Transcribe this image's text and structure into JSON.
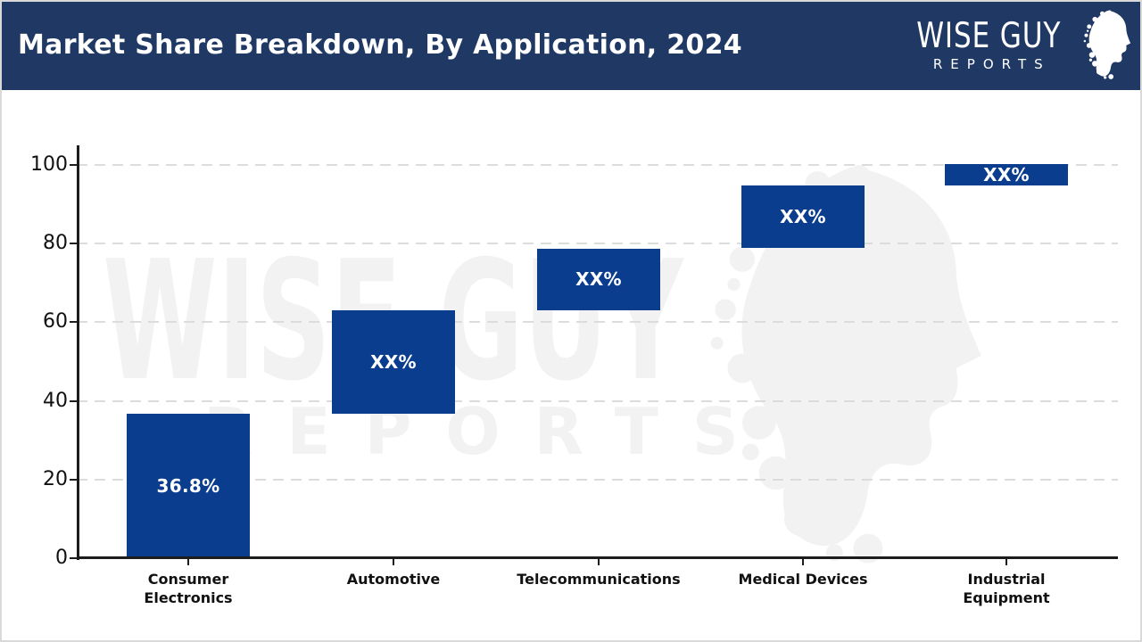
{
  "header": {
    "title": "Market Share Breakdown, By Application, 2024",
    "bg_color": "#1f3864",
    "logo": {
      "wordmark": "WISE GUY",
      "subtitle": "REPORTS",
      "face_icon": "face-profile-dots"
    }
  },
  "watermark": {
    "line1": "WISE GUY",
    "line2": "REPORTS"
  },
  "chart_data": {
    "type": "bar",
    "subtype": "waterfall-floating-bars",
    "title": "Market Share Breakdown, By Application, 2024",
    "xlabel": "",
    "ylabel": "",
    "categories": [
      "Consumer Electronics",
      "Automotive",
      "Telecommunications",
      "Medical Devices",
      "Industrial Equipment"
    ],
    "series": [
      {
        "name": "Market Share",
        "segments": [
          {
            "category": "Consumer Electronics",
            "start": 0,
            "end": 36.8,
            "label": "36.8%"
          },
          {
            "category": "Automotive",
            "start": 36.8,
            "end": 63.1,
            "label": "XX%"
          },
          {
            "category": "Telecommunications",
            "start": 63.1,
            "end": 78.8,
            "label": "XX%"
          },
          {
            "category": "Medical Devices",
            "start": 79.0,
            "end": 94.7,
            "label": "XX%"
          },
          {
            "category": "Industrial Equipment",
            "start": 94.9,
            "end": 100.3,
            "label": "XX%"
          }
        ]
      }
    ],
    "y_ticks": [
      0,
      20,
      40,
      60,
      80,
      100
    ],
    "ylim": [
      0,
      105
    ],
    "grid": "dashed-horizontal",
    "legend": "none",
    "bar_color": "#0b3d8f",
    "bar_label_color": "#ffffff",
    "axis_color": "#1c1c1c",
    "grid_color": "#dcdcdc"
  }
}
